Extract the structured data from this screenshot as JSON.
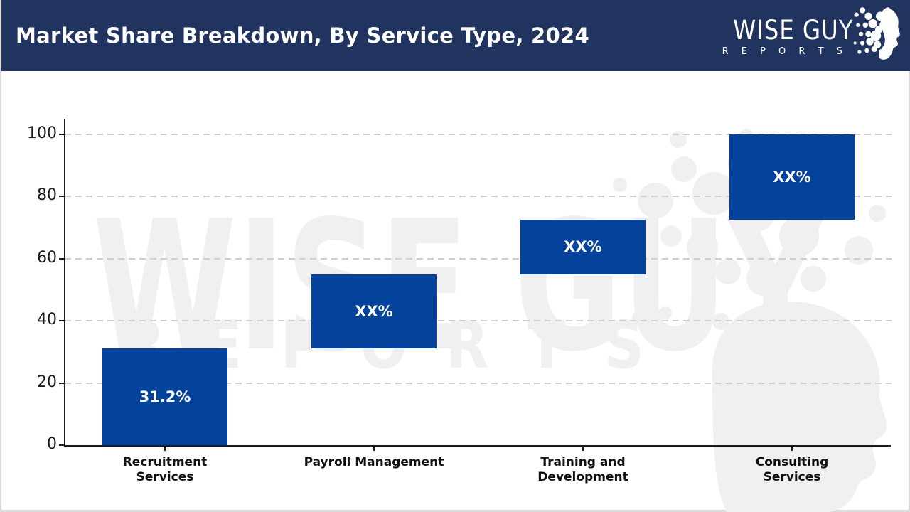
{
  "header": {
    "title": "Market Share Breakdown, By Service Type, 2024",
    "logo": {
      "line1": "WISE GUY",
      "line2": "R E P O R T S"
    }
  },
  "watermark": {
    "line1": "WISE GUY",
    "line2": "R E P O R T S"
  },
  "chart_data": {
    "type": "bar",
    "subtype": "waterfall",
    "title": "Market Share Breakdown, By Service Type, 2024",
    "categories": [
      "Recruitment Services",
      "Payroll Management",
      "Training and Development",
      "Consulting Services"
    ],
    "category_lines": [
      [
        "Recruitment",
        "Services"
      ],
      [
        "Payroll Management"
      ],
      [
        "Training and",
        "Development"
      ],
      [
        "Consulting",
        "Services"
      ]
    ],
    "segments": [
      {
        "category": "Recruitment Services",
        "start": 0,
        "end": 31.2,
        "value": 31.2,
        "label": "31.2%"
      },
      {
        "category": "Payroll Management",
        "start": 31.2,
        "end": 55.0,
        "value": 23.8,
        "label": "XX%"
      },
      {
        "category": "Training and Development",
        "start": 55.0,
        "end": 72.5,
        "value": 17.5,
        "label": "XX%"
      },
      {
        "category": "Consulting Services",
        "start": 72.5,
        "end": 100.0,
        "value": 27.5,
        "label": "XX%"
      }
    ],
    "yticks": [
      0,
      20,
      40,
      60,
      80,
      100
    ],
    "ylim": [
      0,
      105
    ],
    "xlabel": "",
    "ylabel": "",
    "grid": "horizontal-dashed",
    "legend": "none",
    "colors": {
      "bar": "#05429b",
      "header_bg": "#21345f",
      "grid": "#cfcfcf",
      "axis": "#1a1a1a",
      "bar_label": "#ffffff",
      "watermark": "#f0f0f3"
    }
  }
}
